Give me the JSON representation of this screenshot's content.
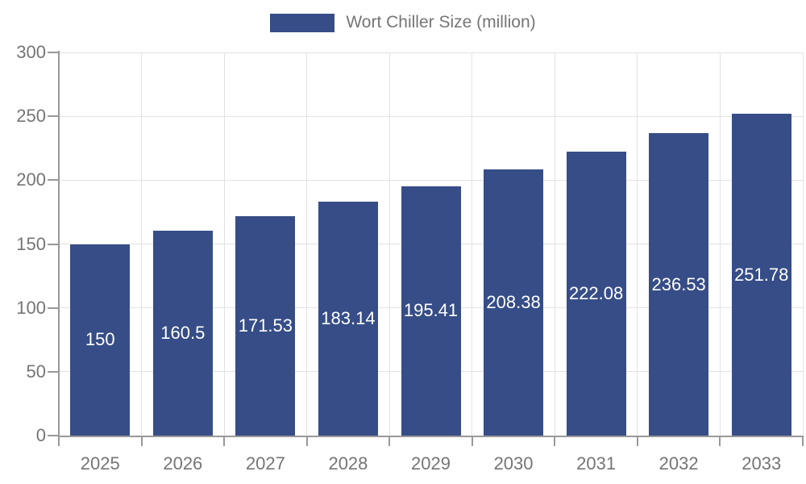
{
  "legend": {
    "label": "Wort Chiller Size (million)"
  },
  "chart_data": {
    "type": "bar",
    "title": "Wort Chiller Size (million)",
    "categories": [
      "2025",
      "2026",
      "2027",
      "2028",
      "2029",
      "2030",
      "2031",
      "2032",
      "2033"
    ],
    "values": [
      150,
      160.5,
      171.53,
      183.14,
      195.41,
      208.38,
      222.08,
      236.53,
      251.78
    ],
    "xlabel": "",
    "ylabel": "",
    "ylim": [
      0,
      300
    ],
    "yticks": [
      0,
      50,
      100,
      150,
      200,
      250,
      300
    ],
    "grid": true,
    "legend_position": "top",
    "value_labels_inside_bars": true,
    "colors": {
      "bar": "#364D87",
      "bar_value_label": "#ffffff",
      "axis": "#999999",
      "grid": "#e2e2e2",
      "tick_label": "#757575"
    }
  }
}
